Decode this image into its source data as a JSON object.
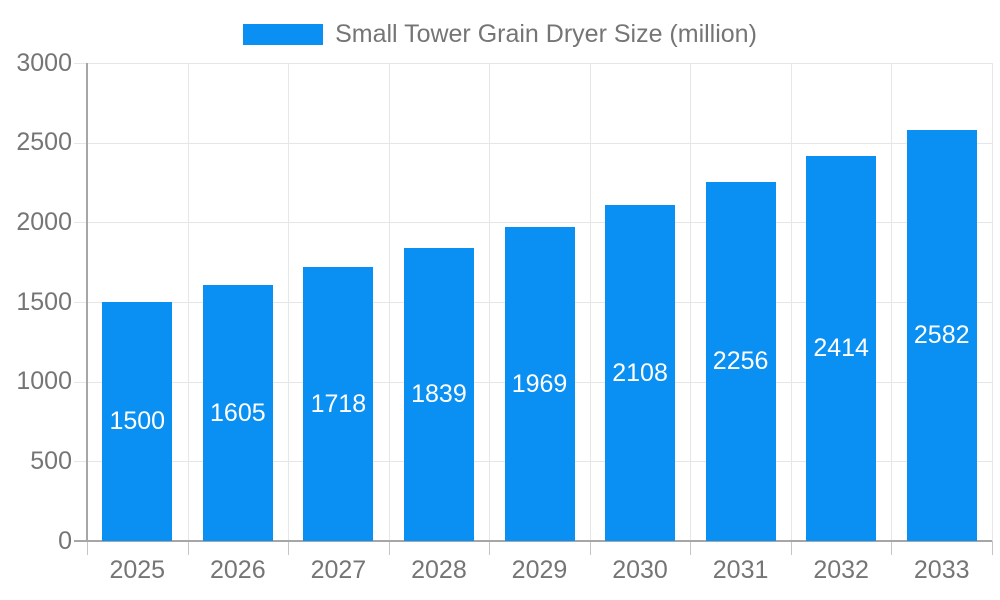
{
  "chart_data": {
    "type": "bar",
    "title": "Small Tower Grain Dryer Size (million)",
    "categories": [
      "2025",
      "2026",
      "2027",
      "2028",
      "2029",
      "2030",
      "2031",
      "2032",
      "2033"
    ],
    "values": [
      1500,
      1605,
      1718,
      1839,
      1969,
      2108,
      2256,
      2414,
      2582
    ],
    "series": [
      {
        "name": "Small Tower Grain Dryer Size (million)",
        "values": [
          1500,
          1605,
          1718,
          1839,
          1969,
          2108,
          2256,
          2414,
          2582
        ]
      }
    ],
    "xlabel": "",
    "ylabel": "",
    "ylim": [
      0,
      3000
    ],
    "yticks": [
      0,
      500,
      1000,
      1500,
      2000,
      2500,
      3000
    ],
    "grid": true,
    "legend_position": "top",
    "bar_value_labels": true,
    "colors": {
      "bar": "#0a8ff2",
      "axis": "#a6a6a6",
      "grid": "#e6e6e6",
      "x_tick": "#c4c4c4",
      "tick_label_text": "#757575",
      "bar_value_text": "#ffffff"
    }
  }
}
